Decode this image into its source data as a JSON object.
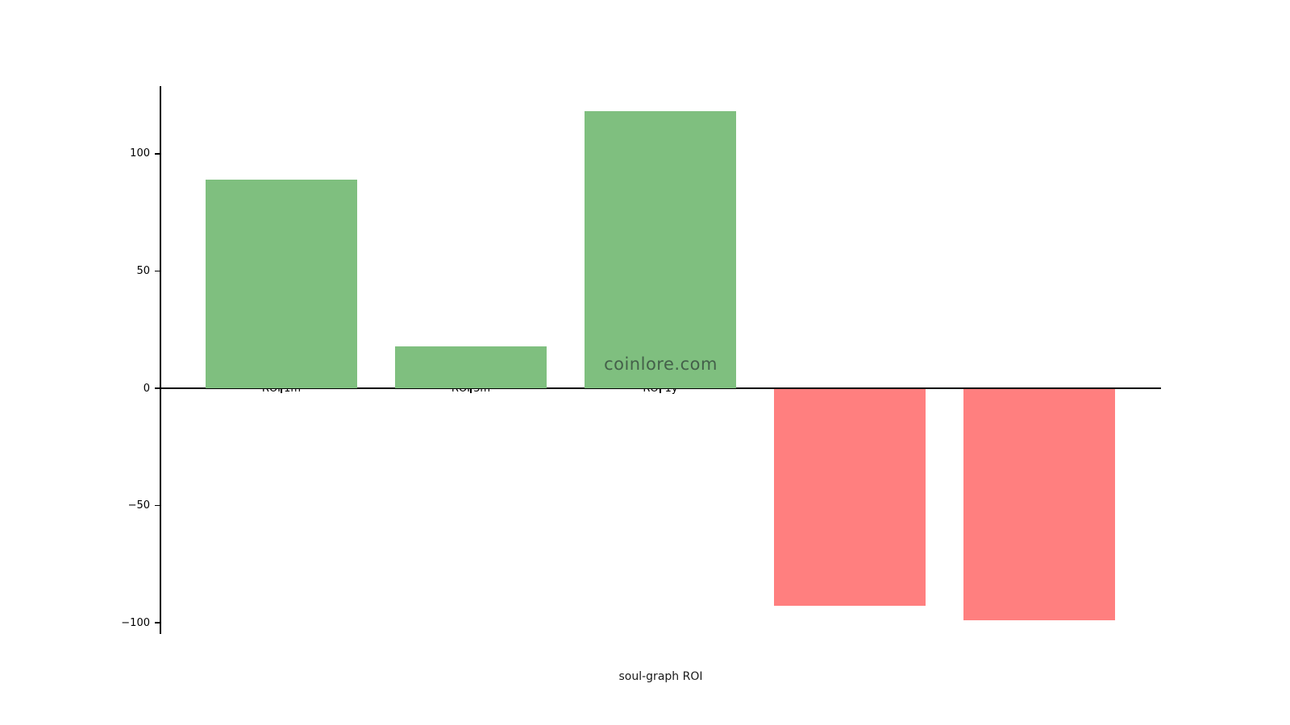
{
  "watermark": {
    "text": "coinlore.com",
    "color": "#44604a"
  },
  "chart_data": {
    "type": "bar",
    "title": "soul-graph ROI",
    "categories": [
      "ROI 1m",
      "ROI 3m",
      "ROI 1y",
      "",
      ""
    ],
    "values": [
      89,
      18,
      118,
      -92.5,
      -98.7
    ],
    "yticks": [
      100,
      50,
      0,
      -50,
      -100
    ],
    "ylim": [
      -104,
      128
    ],
    "xlabel": "",
    "ylabel": "",
    "grid": false,
    "legend_position": "none",
    "positive_color": "#7fbf7f",
    "negative_color": "#ff7f7f",
    "axis_color": "#000000"
  }
}
